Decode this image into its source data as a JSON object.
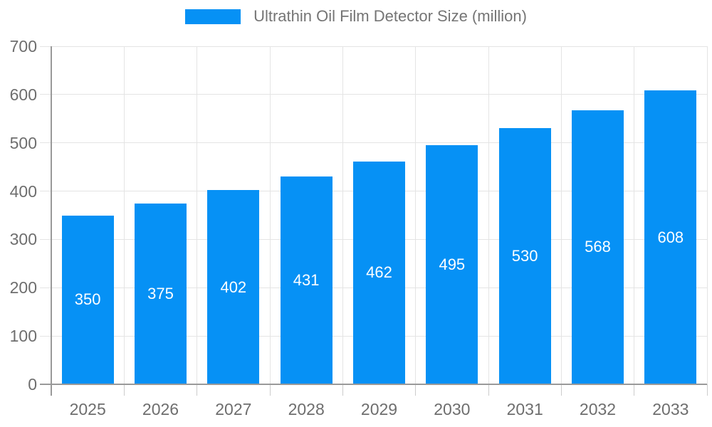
{
  "chart_data": {
    "type": "bar",
    "title": "Ultrathin Oil Film Detector Size (million)",
    "legend_entries": [
      "Ultrathin Oil Film Detector Size (million)"
    ],
    "legend_position": "top",
    "categories": [
      "2025",
      "2026",
      "2027",
      "2028",
      "2029",
      "2030",
      "2031",
      "2032",
      "2033"
    ],
    "values": [
      350,
      375,
      402,
      431,
      462,
      495,
      530,
      568,
      608
    ],
    "xlabel": "",
    "ylabel": "",
    "ylim": [
      0,
      700
    ],
    "yticks": [
      0,
      100,
      200,
      300,
      400,
      500,
      600,
      700
    ],
    "grid": true,
    "colors": {
      "bar": "#0691f5",
      "bar_label": "#ffffff",
      "axis_line": "#999999",
      "grid_line": "#e4e4e4",
      "minor_tick": "#cccccc",
      "axis_text": "#6e6e6e",
      "legend_text": "#757575",
      "background": "#ffffff"
    }
  }
}
